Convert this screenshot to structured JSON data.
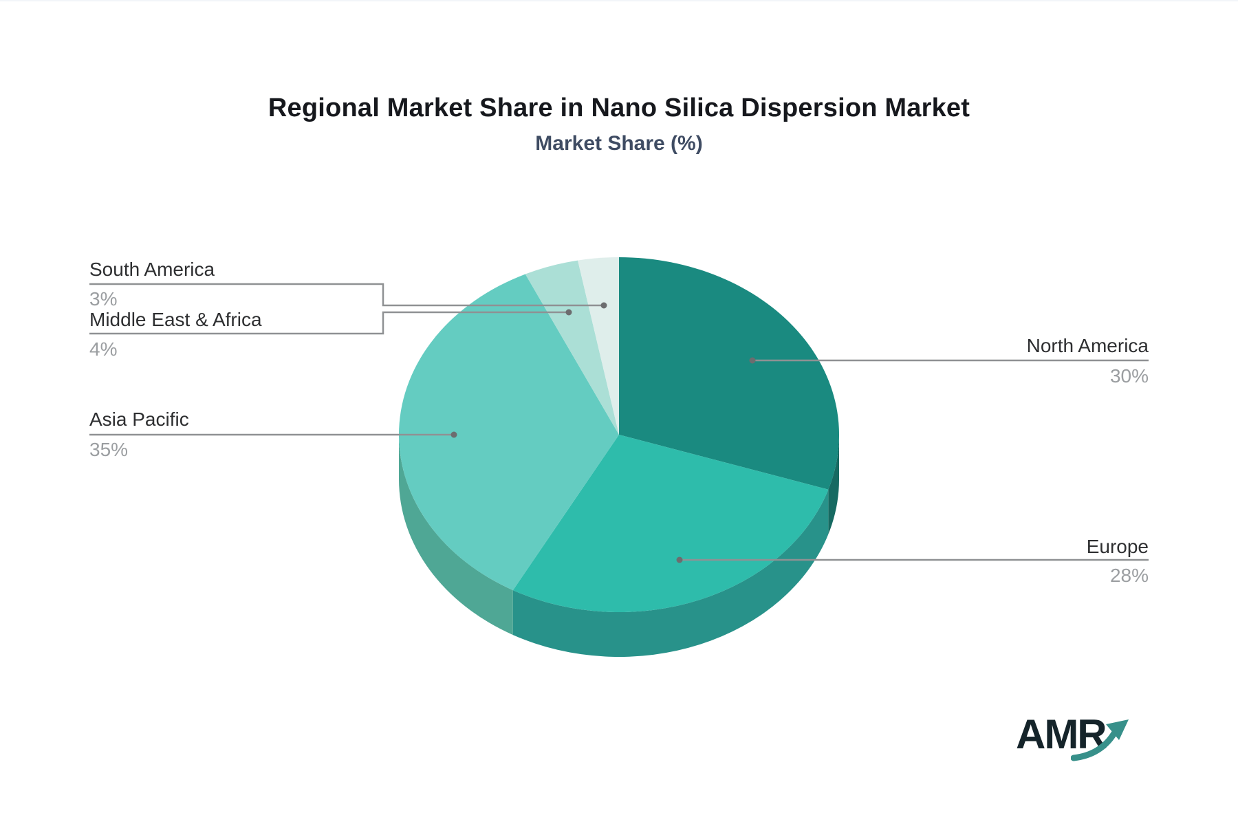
{
  "title": "Regional Market Share in Nano Silica Dispersion Market",
  "subtitle": "Market Share (%)",
  "logo": {
    "text": "AMR",
    "text_color": "#15242a",
    "arrow_color": "#37908a"
  },
  "colors": {
    "title": "#16181d",
    "subtitle": "#3f4c63",
    "label_text": "#2e2f31",
    "pct_text": "#9b9ea1",
    "leader_line": "#8f9193",
    "leader_dot": "#6c6d6f"
  },
  "chart_data": {
    "type": "pie",
    "title": "Regional Market Share in Nano Silica Dispersion Market",
    "subtitle": "Market Share (%)",
    "unit": "%",
    "effect": "3d",
    "start_angle_deg": 0,
    "direction": "clockwise",
    "legend_position": "callout-labels",
    "slices": [
      {
        "label": "North America",
        "value": 30,
        "pct_label": "30%",
        "color": "#1a8a80",
        "side_color": "#176a62"
      },
      {
        "label": "Europe",
        "value": 28,
        "pct_label": "28%",
        "color": "#2ebcab",
        "side_color": "#28928a"
      },
      {
        "label": "Asia Pacific",
        "value": 35,
        "pct_label": "35%",
        "color": "#64ccc1",
        "side_color": "#4fa795"
      },
      {
        "label": "Middle East & Africa",
        "value": 4,
        "pct_label": "4%",
        "color": "#abdfd6",
        "side_color": "#8fc9bf"
      },
      {
        "label": "South America",
        "value": 3,
        "pct_label": "3%",
        "color": "#dfeeeb",
        "side_color": "#c2d9d4"
      }
    ]
  }
}
